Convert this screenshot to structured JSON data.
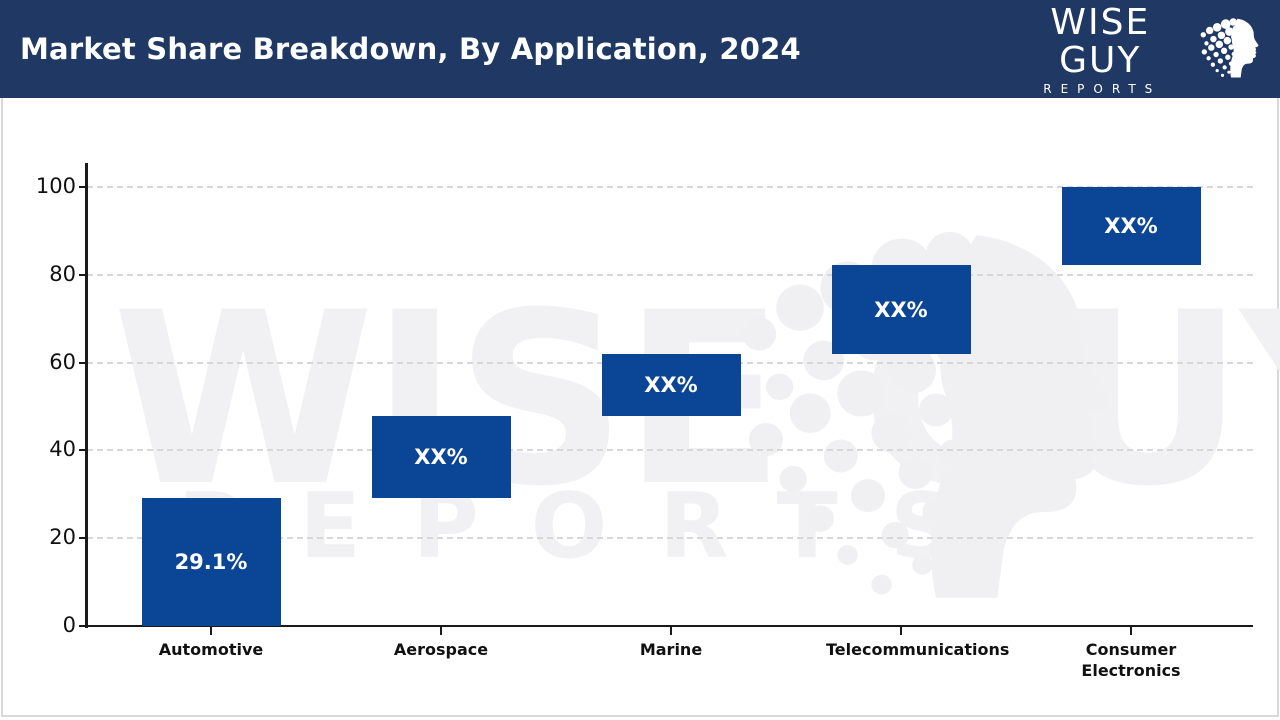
{
  "header": {
    "title": "Market Share Breakdown, By Application, 2024",
    "bg_color": "#1f3864",
    "logo": {
      "line1": "WISE GUY",
      "line2": "REPORTS"
    }
  },
  "watermark": {
    "line1": "WISE GUY",
    "line2": "REPORTS",
    "color": "#f1f1f3"
  },
  "chart_data": {
    "type": "bar",
    "subtype": "waterfall",
    "title": "Market Share Breakdown, By Application, 2024",
    "xlabel": "",
    "ylabel": "",
    "ylim": [
      0,
      100
    ],
    "yticks": [
      0,
      20,
      40,
      60,
      80,
      100
    ],
    "grid": "horizontal-dashed",
    "legend": "none",
    "bar_color": "#0b4596",
    "label_color": "#ffffff",
    "categories": [
      "Automotive",
      "Aerospace",
      "Marine",
      "Telecommunications",
      "Consumer Electronics"
    ],
    "segments": [
      {
        "category": "Automotive",
        "start": 0,
        "end": 29.1,
        "label": "29.1%"
      },
      {
        "category": "Aerospace",
        "start": 29.1,
        "end": 47.9,
        "label": "XX%"
      },
      {
        "category": "Marine",
        "start": 47.9,
        "end": 61.9,
        "label": "XX%"
      },
      {
        "category": "Telecommunications",
        "start": 61.9,
        "end": 82.2,
        "label": "XX%"
      },
      {
        "category": "Consumer Electronics",
        "start": 82.2,
        "end": 100,
        "label": "XX%"
      }
    ]
  }
}
